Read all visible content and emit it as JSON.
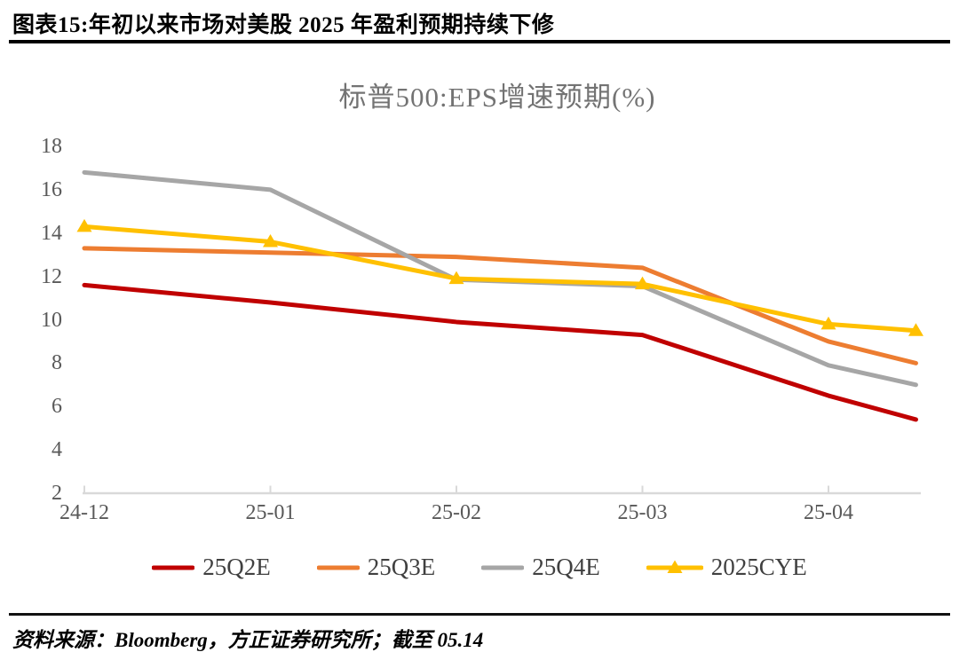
{
  "header": {
    "title": "图表15:年初以来市场对美股 2025 年盈利预期持续下修"
  },
  "chart_data": {
    "type": "line",
    "title": "标普500:EPS增速预期(%)",
    "categories": [
      "24-12",
      "25-01",
      "25-02",
      "25-03",
      "25-04"
    ],
    "x_index": [
      0,
      1,
      2,
      3,
      4,
      4.47
    ],
    "ylim": [
      2,
      18
    ],
    "y_ticks": [
      18,
      16,
      14,
      12,
      10,
      8,
      6,
      4,
      2
    ],
    "grid": false,
    "legend_position": "bottom",
    "axis_color": "#d9d9d9",
    "label_color": "#595959",
    "title_color": "#737373",
    "series": [
      {
        "name": "25Q2E",
        "color": "#c00000",
        "marker": "none",
        "values": [
          11.6,
          10.8,
          9.9,
          9.3,
          6.5,
          5.4
        ]
      },
      {
        "name": "25Q3E",
        "color": "#ed7d31",
        "marker": "none",
        "values": [
          13.3,
          13.1,
          12.9,
          12.4,
          9.0,
          8.0
        ]
      },
      {
        "name": "25Q4E",
        "color": "#a6a6a6",
        "marker": "none",
        "values": [
          16.8,
          16.0,
          11.85,
          11.55,
          7.9,
          7.0
        ]
      },
      {
        "name": "2025CYE",
        "color": "#ffc000",
        "marker": "triangle",
        "values": [
          14.3,
          13.6,
          11.9,
          11.65,
          9.8,
          9.5
        ]
      }
    ]
  },
  "footer": {
    "source": "资料来源：Bloomberg，方正证券研究所；截至 05.14"
  }
}
